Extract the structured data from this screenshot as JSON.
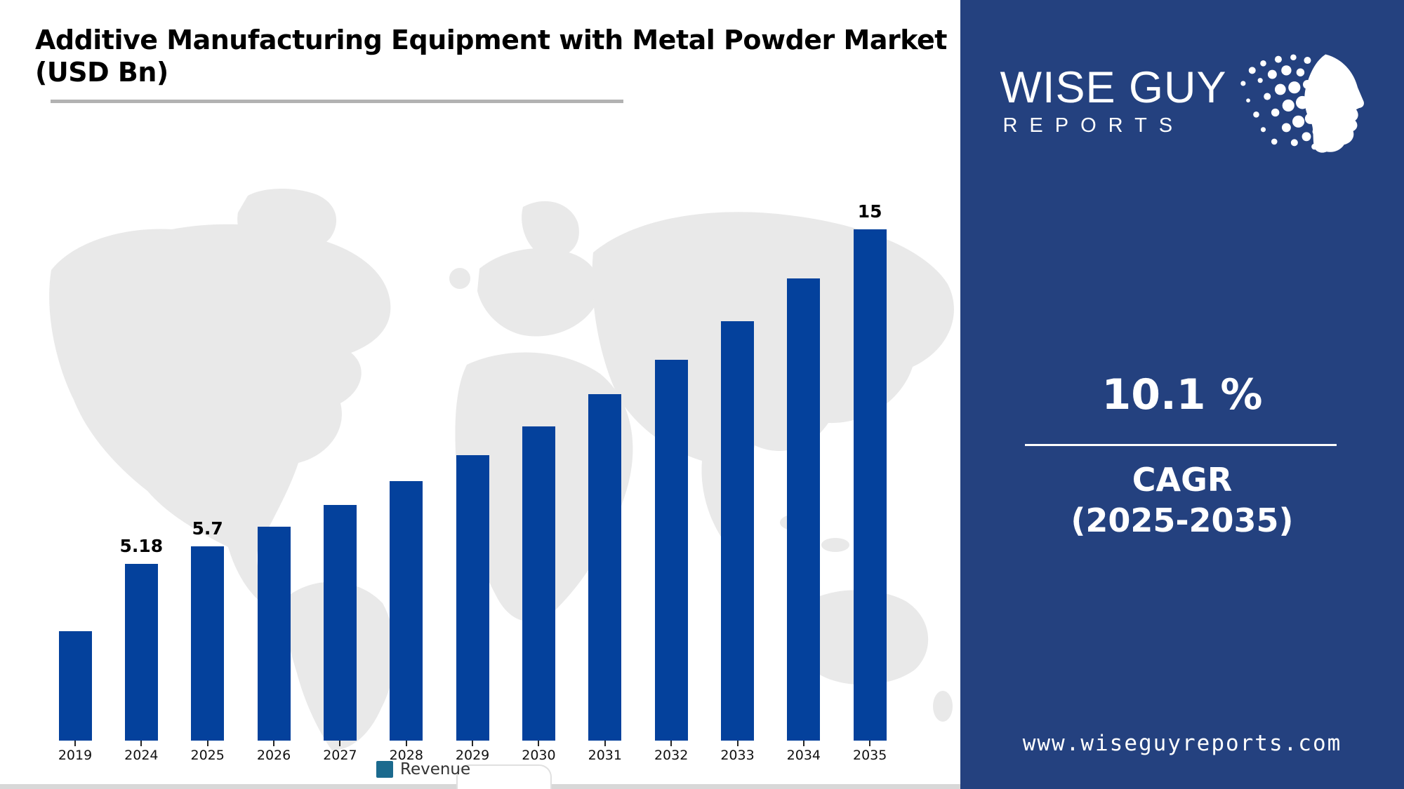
{
  "header": {
    "title_line1": "Additive Manufacturing Equipment with Metal Powder Market",
    "title_line2": "(USD Bn)"
  },
  "sidebar": {
    "brand_line1": "WISE GUY",
    "brand_line2": "REPORTS",
    "head_icon": "dotted-head-profile-icon",
    "cagr_value": "10.1 %",
    "cagr_label_line1": "CAGR",
    "cagr_label_line2": "(2025-2035)",
    "website": "www.wiseguyreports.com",
    "bg_color": "#24417f",
    "text_color": "#ffffff"
  },
  "chart_data": {
    "type": "bar",
    "title": "Additive Manufacturing Equipment with Metal Powder Market (USD Bn)",
    "categories": [
      "2019",
      "2024",
      "2025",
      "2026",
      "2027",
      "2028",
      "2029",
      "2030",
      "2031",
      "2032",
      "2033",
      "2034",
      "2035"
    ],
    "series": [
      {
        "name": "Revenue",
        "values": [
          3.2,
          5.18,
          5.7,
          6.28,
          6.91,
          7.61,
          8.38,
          9.22,
          10.16,
          11.18,
          12.31,
          13.55,
          15
        ]
      }
    ],
    "bar_labels": [
      "",
      "5.18",
      "5.7",
      "",
      "",
      "",
      "",
      "",
      "",
      "",
      "",
      "",
      "15"
    ],
    "xlabel": "",
    "ylabel": "",
    "ylim": [
      0,
      16
    ],
    "grid": false,
    "bar_color": "#04419c",
    "legend": {
      "label": "Revenue",
      "swatch_color": "#1b6a8e",
      "position": "bottom"
    },
    "background_watermark": "light-gray world map"
  }
}
